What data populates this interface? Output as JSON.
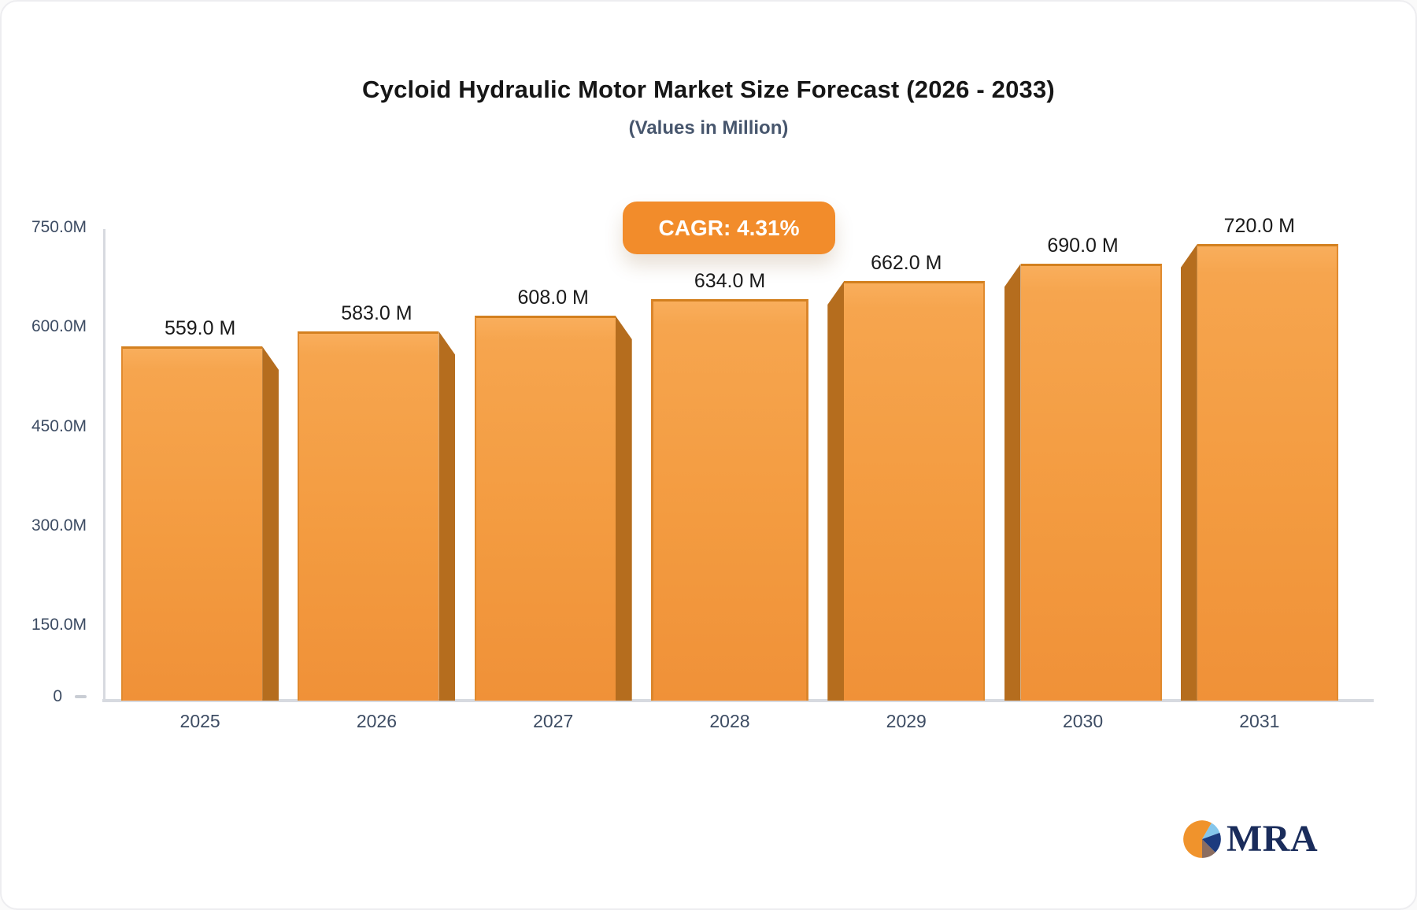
{
  "header": {
    "title": "Cycloid Hydraulic Motor Market Size Forecast (2026 - 2033)",
    "subtitle": "(Values in Million)",
    "cagr_label": "CAGR: 4.31%"
  },
  "chart_data": {
    "type": "bar",
    "title": "Cycloid Hydraulic Motor Market Size Forecast (2026 - 2033)",
    "subtitle": "(Values in Million)",
    "unit": "Million",
    "categories": [
      "2025",
      "2026",
      "2027",
      "2028",
      "2029",
      "2030",
      "2031"
    ],
    "values": [
      559,
      583,
      608,
      634,
      662,
      690,
      720
    ],
    "value_labels": [
      "559.0 M",
      "583.0 M",
      "608.0 M",
      "634.0 M",
      "662.0 M",
      "690.0 M",
      "720.0 M"
    ],
    "annotation": "CAGR: 4.31%",
    "y_ticks": [
      {
        "label": "750.0M",
        "value": 750
      },
      {
        "label": "600.0M",
        "value": 600
      },
      {
        "label": "450.0M",
        "value": 450
      },
      {
        "label": "300.0M",
        "value": 300
      },
      {
        "label": "150.0M",
        "value": 150
      },
      {
        "label": "0",
        "value": 0
      }
    ],
    "ylim": [
      0,
      750
    ],
    "grid": false,
    "legend": null,
    "colors": {
      "bar_top": "#F9AE5C",
      "bar_bottom": "#F09138",
      "bar_side": "#B56D1E",
      "bar_edge": "#D3801F",
      "badge": "#F28C2B",
      "axis": "#D7DAE0",
      "tick_text": "#3D4C63",
      "value_text": "#1A1A1A",
      "title_text": "#161616",
      "subtitle_text": "#47566D"
    }
  },
  "logo": {
    "text": "MRA",
    "text_color": "#1A2C5B",
    "pie_colors": {
      "orange": "#F0932C",
      "light_blue": "#85C6EB",
      "navy": "#1C3B7E",
      "brown": "#8B6D60"
    }
  }
}
